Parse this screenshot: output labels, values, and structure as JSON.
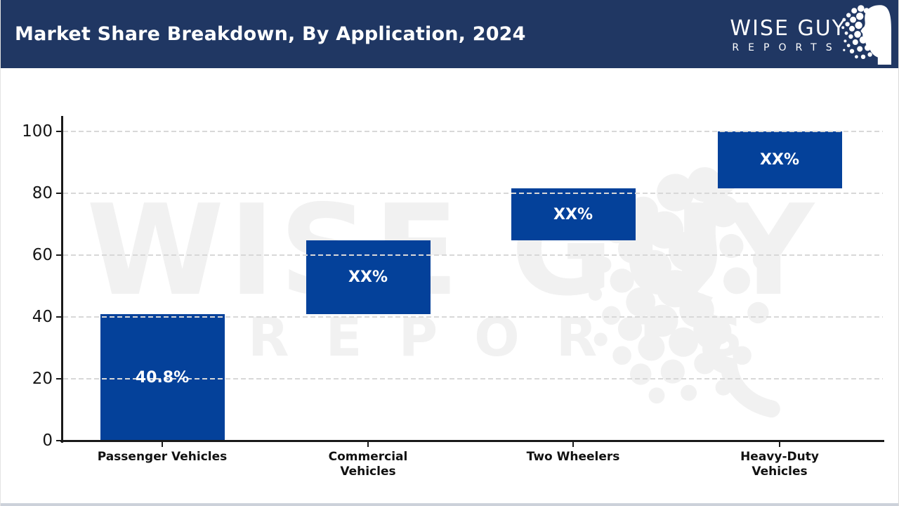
{
  "header": {
    "title": "Market Share Breakdown, By Application, 2024",
    "logo": {
      "line1": "WISE GUY",
      "line2": "REPORTS"
    }
  },
  "watermark": {
    "line1": "WISE GUY",
    "line2": "REPORTS"
  },
  "chart_data": {
    "type": "bar",
    "subtype": "floating-waterfall-segments",
    "title": "Market Share Breakdown, By Application, 2024",
    "categories": [
      "Passenger Vehicles",
      "Commercial Vehicles",
      "Two Wheelers",
      "Heavy-Duty Vehicles"
    ],
    "category_label_lines": [
      [
        "Passenger Vehicles"
      ],
      [
        "Commercial",
        "Vehicles"
      ],
      [
        "Two Wheelers"
      ],
      [
        "Heavy-Duty",
        "Vehicles"
      ]
    ],
    "bars": [
      {
        "category": "Passenger Vehicles",
        "start": 0,
        "end": 40.8,
        "value": 40.8,
        "label": "40.8%"
      },
      {
        "category": "Commercial Vehicles",
        "start": 40.8,
        "end": 64.7,
        "value": 23.9,
        "label": "XX%"
      },
      {
        "category": "Two Wheelers",
        "start": 64.7,
        "end": 81.6,
        "value": 16.9,
        "label": "XX%"
      },
      {
        "category": "Heavy-Duty Vehicles",
        "start": 81.6,
        "end": 100,
        "value": 18.4,
        "label": "XX%"
      }
    ],
    "yticks": [
      0,
      20,
      40,
      60,
      80,
      100
    ],
    "ylim": [
      0,
      104
    ],
    "xlabel": "",
    "ylabel": "",
    "grid": "horizontal-dashed",
    "legend": "none",
    "bar_color": "#04419a",
    "bar_label_color": "#ffffff"
  },
  "colors": {
    "header_bg": "#203763",
    "bar": "#04419a",
    "axis": "#1a1a1a",
    "grid": "#d8d8d8",
    "tick_label": "#151515",
    "watermark": "#f1f1f1",
    "page_bg": "#ffffff",
    "bottom_strip": "#ccd1da"
  }
}
